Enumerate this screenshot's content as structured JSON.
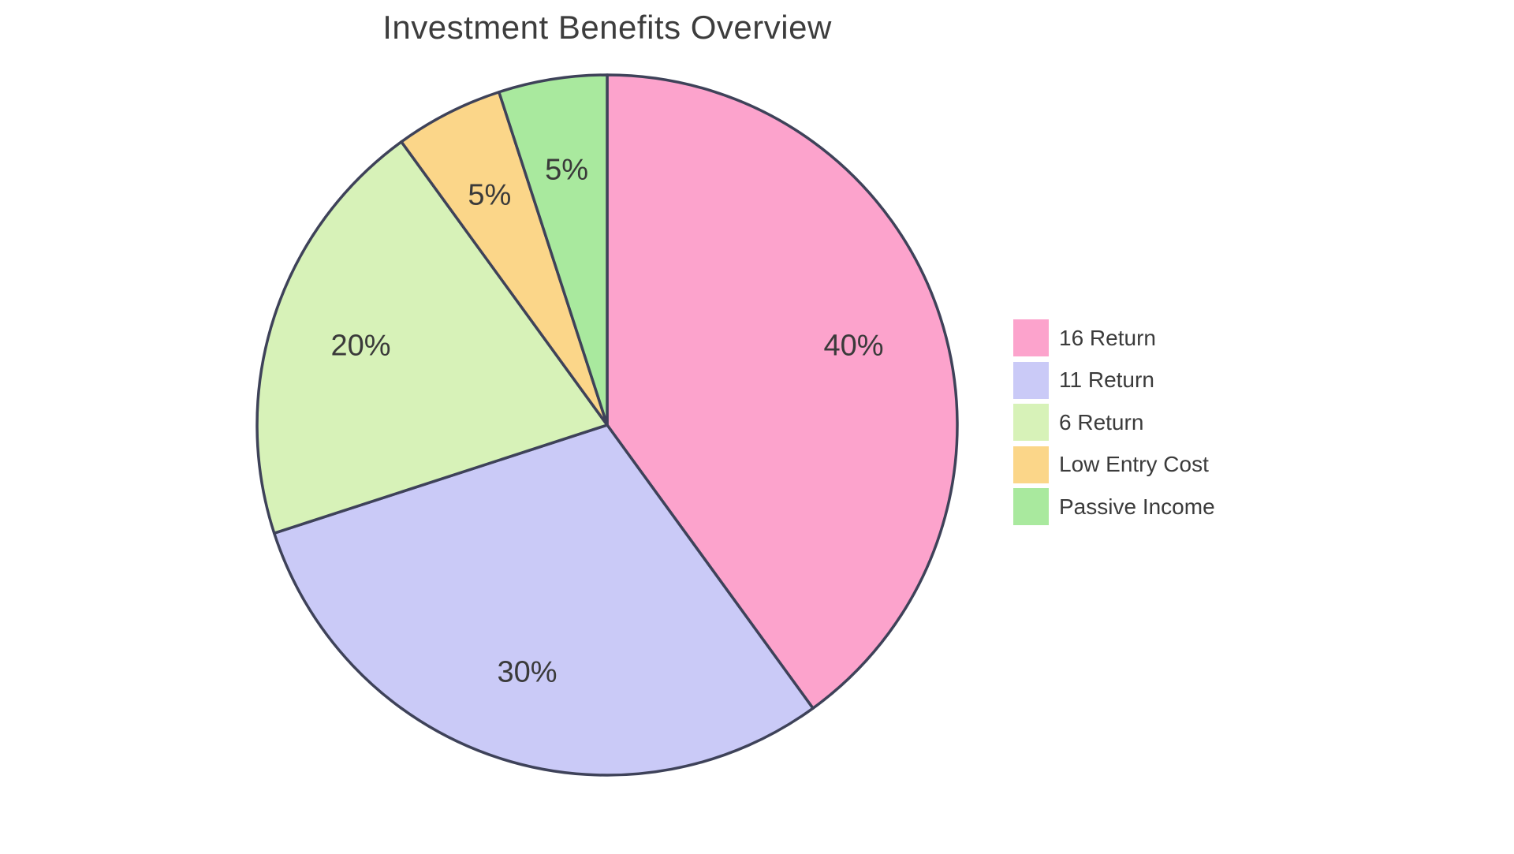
{
  "background_color": "#FFFFFF",
  "chart_data": {
    "type": "pie",
    "title": "Investment Benefits Overview",
    "labels": [
      "16 Return",
      "11 Return",
      "6 Return",
      "Low Entry Cost",
      "Passive Income"
    ],
    "values": [
      40,
      30,
      20,
      5,
      5
    ],
    "slice_labels": [
      "40%",
      "30%",
      "20%",
      "5%",
      "5%"
    ],
    "colors": [
      "#FCA3CC",
      "#CACAF7",
      "#D7F2B8",
      "#FBD689",
      "#A9E99E"
    ],
    "slice_border_color": "#3E4259",
    "title_color": "#3D3D3D",
    "label_color": "#3A3A3A",
    "legend_text_color": "#3B3B3B",
    "start_angle": "top",
    "direction": "clockwise",
    "legend_position": "right",
    "labels_inside": true
  }
}
